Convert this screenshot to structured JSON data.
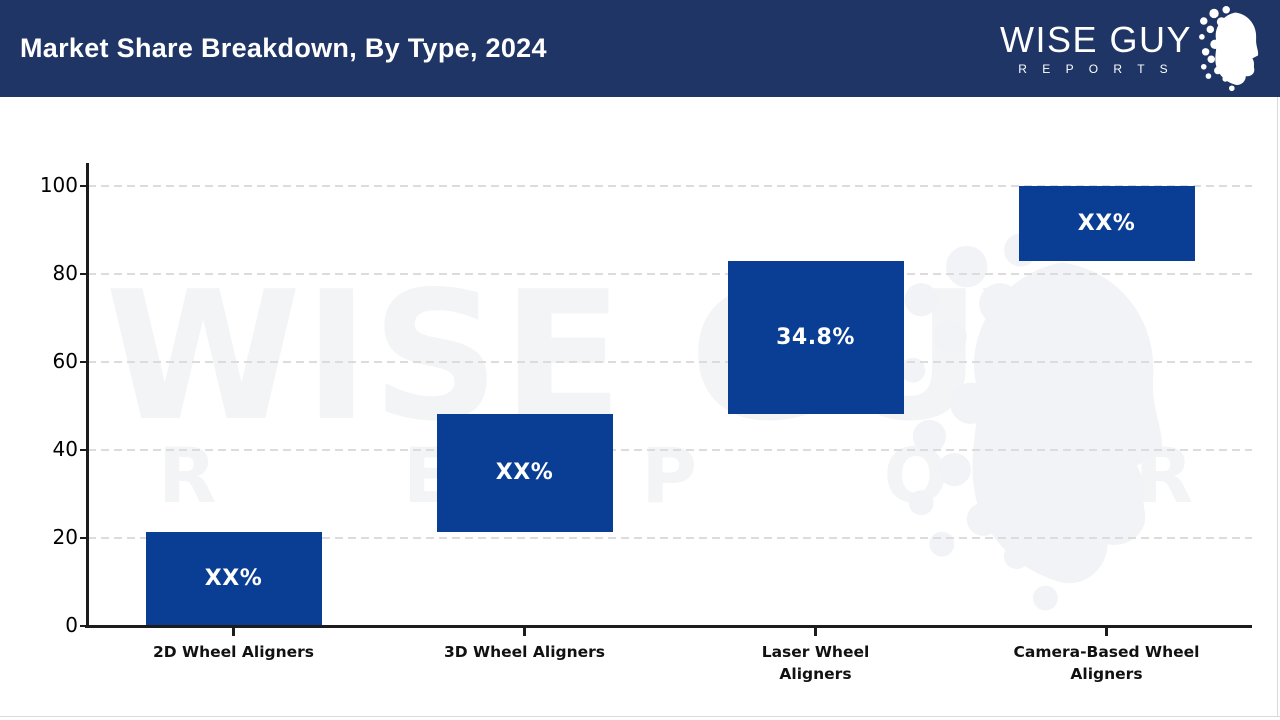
{
  "header": {
    "title": "Market Share Breakdown, By Type, 2024",
    "bg_color": "#1f3565",
    "logo": {
      "line1": "WISE GUY",
      "line2": "R E P O R T S"
    }
  },
  "watermark": {
    "line1": "WISE GUY",
    "line2": "R E P O R T S"
  },
  "chart_data": {
    "type": "bar",
    "subtype": "floating-waterfall",
    "title": "Market Share Breakdown, By Type, 2024",
    "categories": [
      "2D Wheel Aligners",
      "3D Wheel Aligners",
      "Laser Wheel\nAligners",
      "Camera-Based Wheel\nAligners"
    ],
    "series": [
      {
        "name": "Market Share",
        "segments": [
          {
            "category": "2D Wheel Aligners",
            "start": 0,
            "end": 21.4,
            "label": "XX%"
          },
          {
            "category": "3D Wheel Aligners",
            "start": 21.4,
            "end": 48.2,
            "label": "XX%"
          },
          {
            "category": "Laser Wheel Aligners",
            "start": 48.2,
            "end": 83.0,
            "label": "34.8%"
          },
          {
            "category": "Camera-Based Wheel Aligners",
            "start": 83.0,
            "end": 100.0,
            "label": "XX%"
          }
        ]
      }
    ],
    "bar_color": "#0a3e94",
    "xlabel": "",
    "ylabel": "",
    "ylim": [
      0,
      100
    ],
    "yticks": [
      0,
      20,
      40,
      60,
      80,
      100
    ],
    "grid": "horizontal-dashed",
    "legend": "none"
  }
}
